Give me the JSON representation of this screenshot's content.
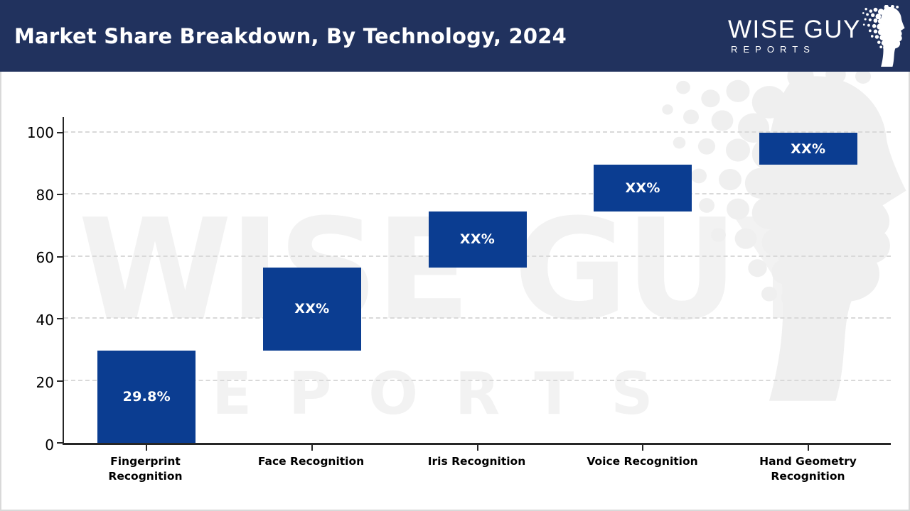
{
  "header": {
    "title": "Market Share Breakdown, By Technology, 2024",
    "logo_line1": "WISE GUY",
    "logo_line2": "REPORTS"
  },
  "watermark": {
    "line1": "WISE GUY",
    "line2": "REPORTS"
  },
  "chart_data": {
    "type": "bar",
    "subtype": "waterfall",
    "title": "Market Share Breakdown, By Technology, 2024",
    "categories": [
      "Fingerprint\nRecognition",
      "Face Recognition",
      "Iris Recognition",
      "Voice Recognition",
      "Hand Geometry\nRecognition"
    ],
    "segments": [
      {
        "category": "Fingerprint Recognition",
        "start": 0,
        "end": 29.8,
        "label": "29.8%"
      },
      {
        "category": "Face Recognition",
        "start": 29.8,
        "end": 56.6,
        "label": "XX%"
      },
      {
        "category": "Iris Recognition",
        "start": 56.6,
        "end": 74.6,
        "label": "XX%"
      },
      {
        "category": "Voice Recognition",
        "start": 74.6,
        "end": 89.6,
        "label": "XX%"
      },
      {
        "category": "Hand Geometry Recognition",
        "start": 89.6,
        "end": 100,
        "label": "XX%"
      }
    ],
    "yticks": [
      0,
      20,
      40,
      60,
      80,
      100
    ],
    "ylim": [
      0,
      105
    ],
    "grid": "dashed-horizontal",
    "legend": "none",
    "colors": {
      "bar": "#0b3d91",
      "bar_label": "#ffffff",
      "axis": "#262626",
      "gridline": "#d9d9d9",
      "tick_label": "#000000"
    }
  },
  "theme": {
    "header_bg": "#21325e",
    "header_text": "#ffffff",
    "page_bg": "#ffffff",
    "border": "#d9d9d9",
    "watermark": "#f2f2f2"
  }
}
